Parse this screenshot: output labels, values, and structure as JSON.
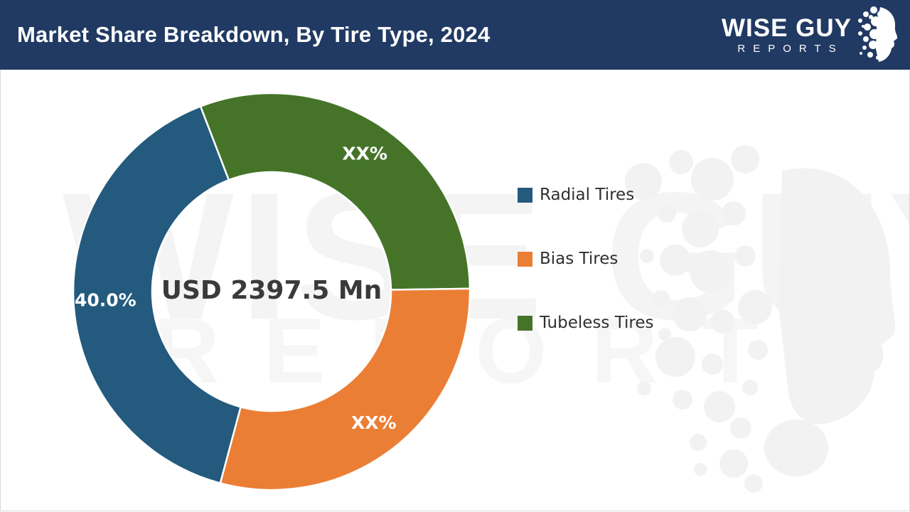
{
  "header": {
    "title": "Market Share Breakdown, By Tire Type, 2024",
    "bg_color": "#213A63",
    "logo": {
      "line1": "WISE GUY",
      "line2": "REPORTS",
      "head_icon": "dotted-head-profile-icon"
    }
  },
  "chart_data": {
    "type": "pie",
    "subtype": "donut",
    "title": "Market Share Breakdown, By Tire Type, 2024",
    "center_label": "USD 2397.5 Mn",
    "start_angle_deg": -21,
    "inner_radius_ratio": 0.6,
    "legend_position": "right",
    "segments": [
      {
        "label": "Tubeless Tires",
        "display_label": "XX%",
        "percent_est": 30.6,
        "color": "#457428"
      },
      {
        "label": "Bias Tires",
        "display_label": "XX%",
        "percent_est": 29.4,
        "color": "#EB7E35"
      },
      {
        "label": "Radial Tires",
        "display_label": "40.0%",
        "percent_est": 40.0,
        "color": "#235A7D"
      }
    ],
    "legend": [
      {
        "label": "Radial Tires",
        "color": "#235A7D"
      },
      {
        "label": "Bias Tires",
        "color": "#EB7E35"
      },
      {
        "label": "Tubeless Tires",
        "color": "#457428"
      }
    ]
  },
  "watermark": {
    "line1": "WISE GUY",
    "line2": "REPORTS",
    "head_icon": "dotted-head-profile-watermark"
  }
}
